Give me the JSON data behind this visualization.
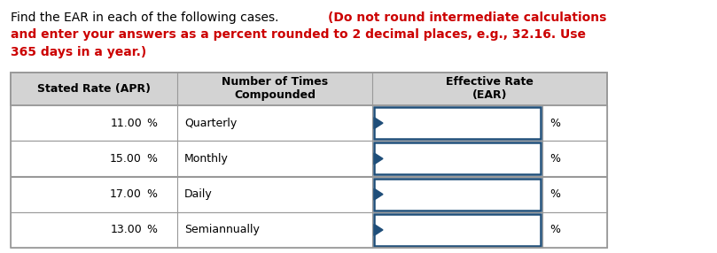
{
  "title_normal": "Find the EAR in each of the following cases. ",
  "title_bold_line1": "(Do not round intermediate calculations",
  "title_bold_line2": "and enter your answers as a percent rounded to 2 decimal places, e.g., 32.16. Use",
  "title_bold_line3": "365 days in a year.)",
  "col_headers": [
    "Stated Rate (APR)",
    "Number of Times\nCompounded",
    "Effective Rate\n(EAR)"
  ],
  "rows": [
    [
      "11.00",
      "Quarterly"
    ],
    [
      "15.00",
      "Monthly"
    ],
    [
      "17.00",
      "Daily"
    ],
    [
      "13.00",
      "Semiannually"
    ]
  ],
  "header_bg": "#d3d3d3",
  "table_border_color": "#999999",
  "input_box_border": "#1f4e79",
  "bg_color": "#ffffff",
  "title_color_normal": "#000000",
  "title_color_bold": "#cc0000",
  "fig_width": 8.09,
  "fig_height": 2.86,
  "dpi": 100
}
